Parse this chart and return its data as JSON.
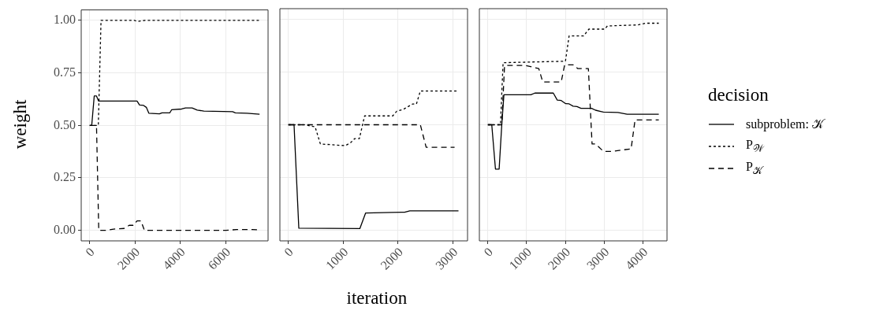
{
  "chart_data": [
    {
      "type": "line",
      "ylabel": "weight",
      "xlim": [
        -375,
        7875
      ],
      "ylim": [
        -0.05,
        1.05
      ],
      "xticks": [
        0,
        2000,
        4000,
        6000
      ],
      "yticks": [
        {
          "value": 0,
          "label": "0.00"
        },
        {
          "value": 0.25,
          "label": "0.25"
        },
        {
          "value": 0.5,
          "label": "0.50"
        },
        {
          "value": 0.75,
          "label": "0.75"
        },
        {
          "value": 1,
          "label": "1.00"
        }
      ],
      "grid": true,
      "series": [
        {
          "color": "#000000",
          "line_style": "solid",
          "x": [
            0,
            90,
            200,
            300,
            390,
            2090,
            2200,
            2380,
            2500,
            2610,
            3080,
            3190,
            3540,
            3620,
            4060,
            4230,
            4520,
            4750,
            5040,
            6310,
            6430,
            6950,
            7500
          ],
          "values": [
            0.5,
            0.5,
            0.64,
            0.64,
            0.616,
            0.616,
            0.597,
            0.595,
            0.586,
            0.558,
            0.555,
            0.56,
            0.56,
            0.575,
            0.578,
            0.583,
            0.583,
            0.573,
            0.568,
            0.565,
            0.56,
            0.558,
            0.553
          ]
        },
        {
          "color": "#000000",
          "line_style": "dotted",
          "x": [
            0,
            380,
            500,
            1980,
            2090,
            2440,
            7470
          ],
          "values": [
            0.5,
            0.5,
            1.0,
            1.0,
            0.995,
            1.0,
            1.0
          ]
        },
        {
          "color": "#000000",
          "line_style": "dashed",
          "x": [
            0,
            300,
            400,
            705,
            1050,
            1515,
            1745,
            1920,
            2090,
            2265,
            2415,
            6020,
            6490,
            7180,
            7470
          ],
          "values": [
            0.5,
            0.5,
            0.0,
            0.0,
            0.006,
            0.009,
            0.024,
            0.024,
            0.045,
            0.045,
            0.0,
            0.0,
            0.004,
            0.004,
            0.002
          ]
        }
      ]
    },
    {
      "type": "line",
      "xlabel": "iteration",
      "xlim": [
        -155,
        3265
      ],
      "ylim": [
        -0.05,
        1.05
      ],
      "xticks": [
        0,
        1000,
        2000,
        3000
      ],
      "yticks": [
        0,
        0.25,
        0.5,
        0.75,
        1
      ],
      "tick_labels": "x",
      "grid": true,
      "series": [
        {
          "color": "#000000",
          "line_style": "solid",
          "x": [
            0,
            103,
            190,
            1302,
            1408,
            1878,
            2118,
            2213,
            3100
          ],
          "values": [
            0.5,
            0.5,
            0.01,
            0.008,
            0.082,
            0.085,
            0.086,
            0.092,
            0.092
          ]
        },
        {
          "color": "#000000",
          "line_style": "dotted",
          "x": [
            0,
            295,
            487,
            583,
            1038,
            1134,
            1206,
            1293,
            1389,
            1902,
            1974,
            2094,
            2261,
            2333,
            2405,
            3100
          ],
          "values": [
            0.5,
            0.5,
            0.49,
            0.409,
            0.401,
            0.415,
            0.434,
            0.434,
            0.542,
            0.542,
            0.564,
            0.573,
            0.598,
            0.598,
            0.66,
            0.66
          ]
        },
        {
          "color": "#000000",
          "line_style": "dashed",
          "x": [
            0,
            2405,
            2511,
            3029
          ],
          "values": [
            0.5,
            0.5,
            0.393,
            0.393
          ]
        }
      ]
    },
    {
      "type": "line",
      "legend_title": "decision",
      "xlim": [
        -220,
        4620
      ],
      "ylim": [
        -0.05,
        1.05
      ],
      "xticks": [
        0,
        1000,
        2000,
        3000,
        4000
      ],
      "yticks": [
        0,
        0.25,
        0.5,
        0.75,
        1
      ],
      "tick_labels": "x",
      "grid": true,
      "legend": "right",
      "series": [
        {
          "name": "subproblem: 𝒦",
          "color": "#000000",
          "line_style": "solid",
          "x": [
            0,
            100,
            195,
            290,
            358,
            413,
            1109,
            1211,
            1687,
            1789,
            1891,
            2007,
            2095,
            2197,
            2299,
            2401,
            2673,
            2776,
            2980,
            3354,
            3592,
            4408
          ],
          "values": [
            0.5,
            0.5,
            0.29,
            0.29,
            0.5,
            0.642,
            0.642,
            0.65,
            0.65,
            0.617,
            0.615,
            0.6,
            0.599,
            0.588,
            0.586,
            0.578,
            0.578,
            0.569,
            0.56,
            0.558,
            0.55,
            0.55
          ]
        },
        {
          "name": "P$_{𝒲}$",
          "color": "#000000",
          "line_style": "dotted",
          "x": [
            0,
            324,
            392,
            2000,
            2095,
            2469,
            2605,
            3013,
            3082,
            3864,
            4068,
            4408
          ],
          "values": [
            0.5,
            0.5,
            0.794,
            0.801,
            0.921,
            0.921,
            0.953,
            0.953,
            0.968,
            0.973,
            0.981,
            0.981
          ]
        },
        {
          "name": "P$_{𝒦}$",
          "color": "#000000",
          "line_style": "dashed",
          "x": [
            0,
            358,
            429,
            510,
            973,
            1313,
            1415,
            1891,
            1980,
            2197,
            2320,
            2592,
            2687,
            2776,
            2980,
            3218,
            3694,
            3796,
            4408
          ],
          "values": [
            0.5,
            0.5,
            0.779,
            0.781,
            0.781,
            0.766,
            0.703,
            0.703,
            0.784,
            0.784,
            0.766,
            0.766,
            0.409,
            0.409,
            0.374,
            0.374,
            0.386,
            0.523,
            0.523
          ]
        }
      ]
    }
  ]
}
